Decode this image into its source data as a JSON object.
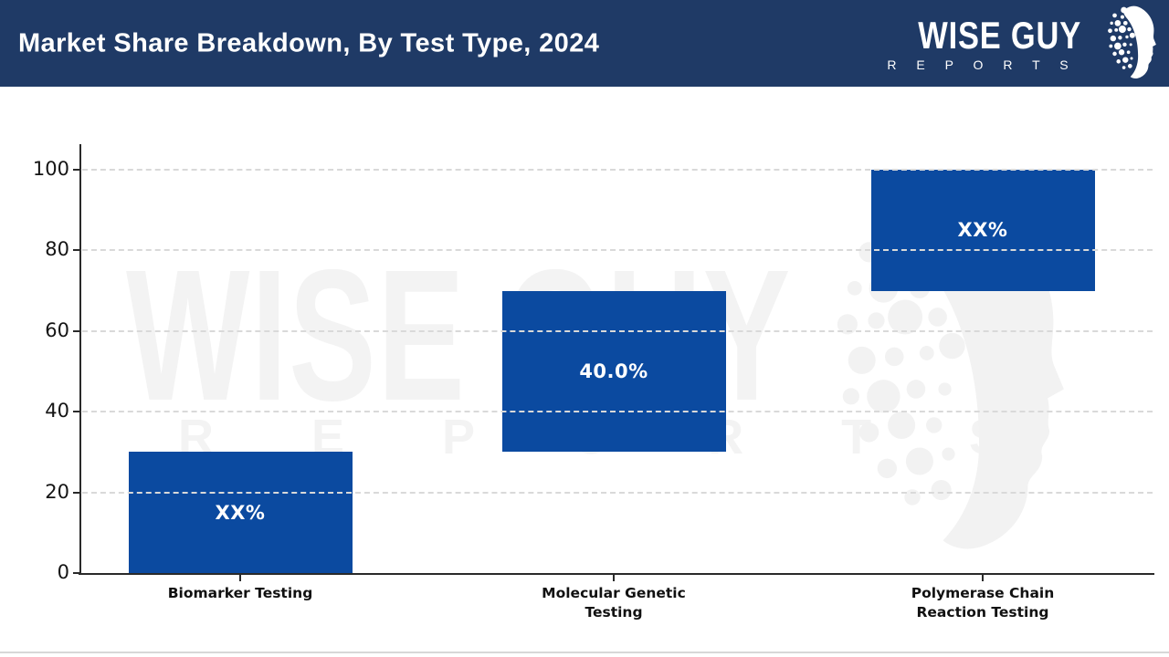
{
  "header": {
    "title": "Market Share Breakdown, By Test Type, 2024",
    "logo": {
      "wordmark": "WISE GUY",
      "sub": "R E P O R T S"
    }
  },
  "watermark": {
    "wordmark": "WISE GUY",
    "sub": "R E P O R T S"
  },
  "colors": {
    "header_bg": "#1f3a66",
    "bar": "#0b4aa0",
    "grid": "#d9d9d9",
    "axis": "#2a2a2a",
    "watermark": "#f3f3f3"
  },
  "chart_data": {
    "type": "bar",
    "variant": "floating-waterfall",
    "title": "Market Share Breakdown, By Test Type, 2024",
    "categories": [
      "Biomarker Testing",
      "Molecular Genetic\nTesting",
      "Polymerase Chain\nReaction Testing"
    ],
    "segments": [
      {
        "category": "Biomarker Testing",
        "start": 0,
        "end": 30,
        "label": "XX%"
      },
      {
        "category": "Molecular Genetic Testing",
        "start": 30,
        "end": 70,
        "label": "40.0%"
      },
      {
        "category": "Polymerase Chain Reaction Testing",
        "start": 70,
        "end": 100,
        "label": "XX%"
      }
    ],
    "ylim": [
      0,
      100
    ],
    "yticks": [
      0,
      20,
      40,
      60,
      80,
      100
    ],
    "xlabel": "",
    "ylabel": "",
    "grid": "horizontal-dashed",
    "legend": "none",
    "bar_color": "#0b4aa0"
  }
}
